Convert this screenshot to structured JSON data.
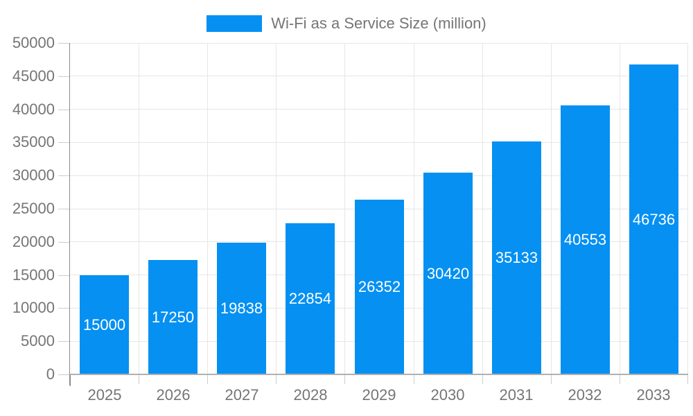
{
  "chart_data": {
    "type": "bar",
    "title": "",
    "legend_label": "Wi-Fi as a Service Size (million)",
    "legend_position": "top",
    "categories": [
      "2025",
      "2026",
      "2027",
      "2028",
      "2029",
      "2030",
      "2031",
      "2032",
      "2033"
    ],
    "series": [
      {
        "name": "Wi-Fi as a Service Size (million)",
        "values": [
          15000,
          17250,
          19838,
          22854,
          26352,
          30420,
          35133,
          40553,
          46736
        ]
      }
    ],
    "value_labels_shown": true,
    "xlabel": "",
    "ylabel": "",
    "ylim": [
      0,
      50000
    ],
    "yticks": [
      0,
      5000,
      10000,
      15000,
      20000,
      25000,
      30000,
      35000,
      40000,
      45000,
      50000
    ],
    "grid": true,
    "colors": {
      "bar": "#0590F2",
      "text": "#757575",
      "value_label": "#FFFFFF",
      "gridline": "#E6E6E6",
      "axis": "#8C8C8C",
      "baseline": "#B0B0B0",
      "tick": "#CCCCCC",
      "background": "#FFFFFF"
    }
  }
}
